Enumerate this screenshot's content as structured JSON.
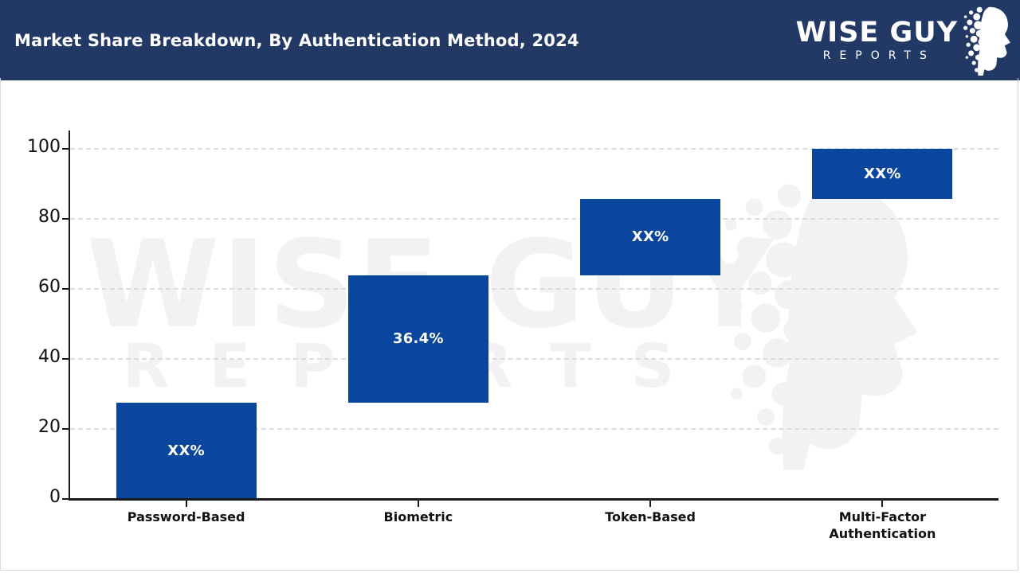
{
  "header": {
    "title": "Market Share Breakdown, By Authentication Method, 2024",
    "logo": {
      "line1": "WISE GUY",
      "line2": "REPORTS"
    }
  },
  "watermark": {
    "line1": "WISE GUY",
    "line2": "REPORTS"
  },
  "colors": {
    "header_bg": "#223966",
    "bar": "#0a469d",
    "grid": "#dcdcdc",
    "axis": "#1a1a1a",
    "watermark": "#f2f2f4",
    "bar_label": "#ffffff"
  },
  "chart_data": {
    "type": "bar",
    "subtype": "floating-segment-breakdown",
    "title": "Market Share Breakdown, By Authentication Method, 2024",
    "categories": [
      "Password-Based",
      "Biometric",
      "Token-Based",
      "Multi-Factor Authentication"
    ],
    "bars": [
      {
        "category": "Password-Based",
        "start": 0,
        "end": 27.5,
        "height": 27.5,
        "label": "XX%"
      },
      {
        "category": "Biometric",
        "start": 27.5,
        "end": 63.9,
        "height": 36.4,
        "label": "36.4%"
      },
      {
        "category": "Token-Based",
        "start": 63.9,
        "end": 85.7,
        "height": 21.8,
        "label": "XX%"
      },
      {
        "category": "Multi-Factor Authentication",
        "start": 85.7,
        "end": 100,
        "height": 14.3,
        "label": "XX%"
      }
    ],
    "xlabel": "",
    "ylabel": "",
    "ylim": [
      0,
      100
    ],
    "yticks": [
      0,
      20,
      40,
      60,
      80,
      100
    ],
    "grid": "horizontal-dashed",
    "legend": "none"
  }
}
